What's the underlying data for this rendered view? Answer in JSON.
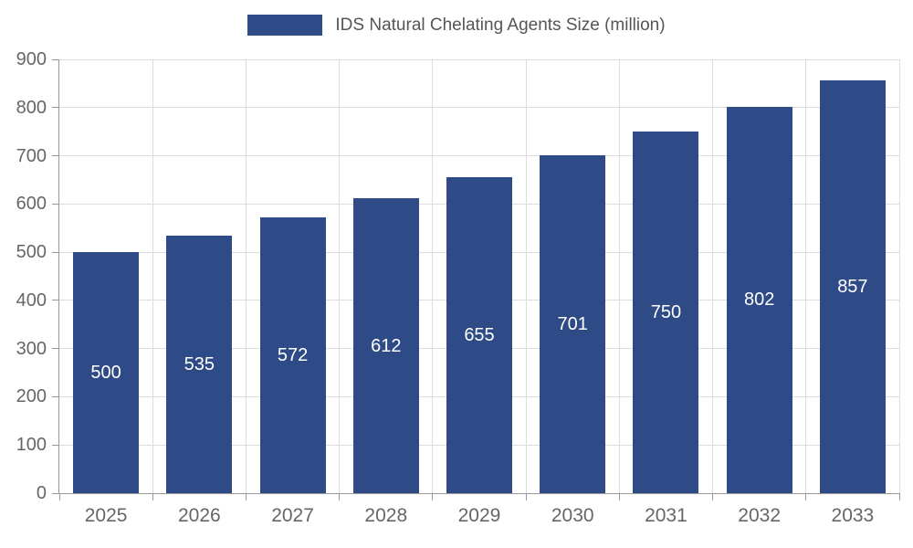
{
  "legend": {
    "label": "IDS Natural Chelating Agents Size (million)"
  },
  "colors": {
    "bar": "#2E4A87",
    "grid": "#DDDDDD",
    "axis": "#999999",
    "tick_label": "#666666",
    "value_label": "#FFFFFF",
    "legend_text": "#555555"
  },
  "chart_data": {
    "type": "bar",
    "title": "IDS Natural Chelating Agents Size (million)",
    "categories": [
      "2025",
      "2026",
      "2027",
      "2028",
      "2029",
      "2030",
      "2031",
      "2032",
      "2033"
    ],
    "values": [
      500,
      535,
      572,
      612,
      655,
      701,
      750,
      802,
      857
    ],
    "xlabel": "",
    "ylabel": "",
    "ylim": [
      0,
      900
    ],
    "ytick_step": 100,
    "grid": true,
    "legend_position": "top",
    "value_labels": "inside-center"
  }
}
